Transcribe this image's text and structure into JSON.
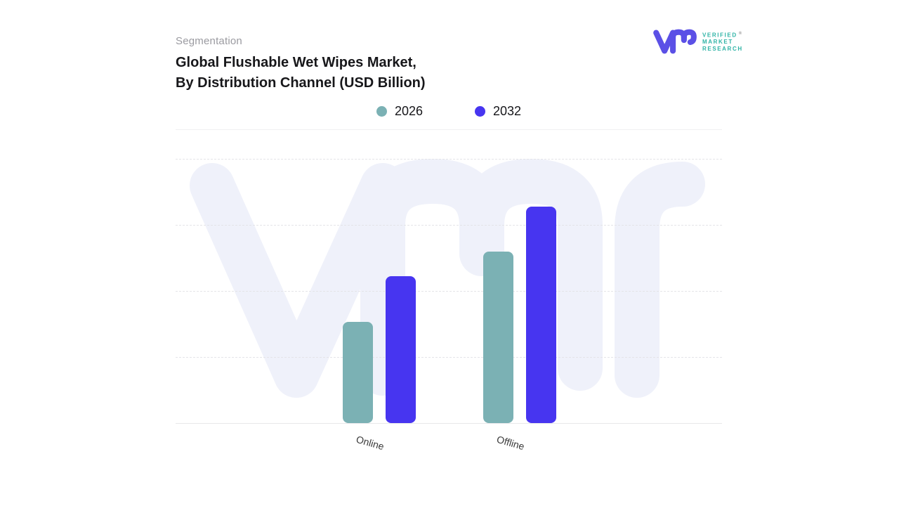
{
  "page": {
    "eyebrow": "Segmentation",
    "title_line1": "Global Flushable Wet Wipes Market,",
    "title_line2": "By Distribution Channel (USD Billion)"
  },
  "logo": {
    "monogram_icon": "vmr-monogram",
    "monogram_color": "#5b50e6",
    "text_color": "#2fb3a6",
    "line1": "VERIFIED",
    "registered_mark": "®",
    "line2": "MARKET",
    "line3": "RESEARCH"
  },
  "watermark": {
    "icon": "vmr-watermark",
    "color": "#eff1fa"
  },
  "chart_data": {
    "type": "bar",
    "title": "Global Flushable Wet Wipes Market, By Distribution Channel (USD Billion)",
    "categories": [
      "Online",
      "Offline"
    ],
    "series": [
      {
        "name": "2026",
        "color": "#7bb1b4",
        "values": [
          1.53,
          2.6
        ]
      },
      {
        "name": "2032",
        "color": "#4735f0",
        "values": [
          2.22,
          3.28
        ]
      }
    ],
    "xlabel": "",
    "ylabel": "",
    "value_axis": {
      "min": 0,
      "max": 4,
      "tick_labels_visible": false,
      "units": "relative gridline units (no numeric labels shown in image)"
    },
    "grid": "dashed horizontal gridlines",
    "legend_position": "top-center"
  }
}
